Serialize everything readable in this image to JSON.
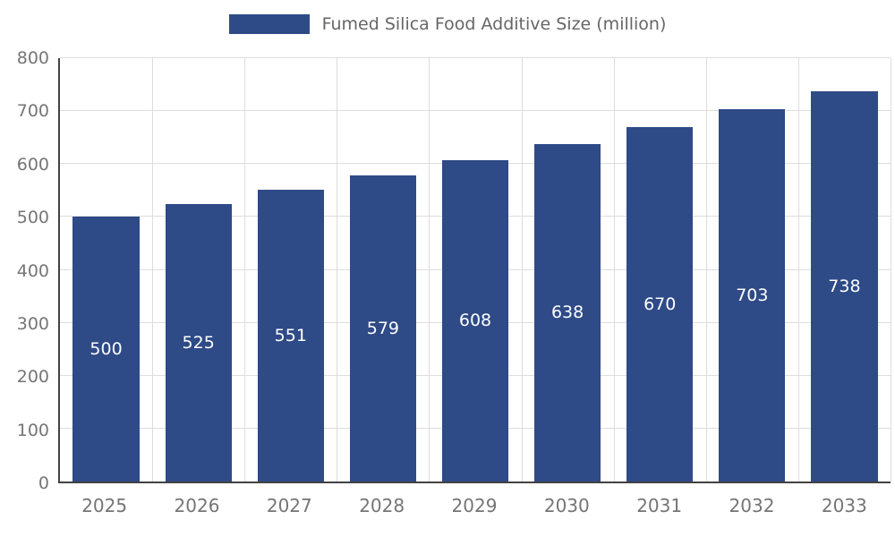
{
  "chart_data": {
    "type": "bar",
    "title": "Fumed Silica Food Additive Size (million)",
    "categories": [
      "2025",
      "2026",
      "2027",
      "2028",
      "2029",
      "2030",
      "2031",
      "2032",
      "2033"
    ],
    "values": [
      500,
      525,
      551,
      579,
      608,
      638,
      670,
      703,
      738
    ],
    "xlabel": "",
    "ylabel": "",
    "ylim": [
      0,
      800
    ],
    "y_ticks": [
      0,
      100,
      200,
      300,
      400,
      500,
      600,
      700,
      800
    ],
    "grid": true,
    "legend_position": "top",
    "colors": {
      "bar": "#2e4a87",
      "value_label": "#ffffff",
      "tick_label": "#757575",
      "title": "#666666",
      "gridline": "#dddddd",
      "axis": "#424242",
      "background": "#ffffff"
    }
  }
}
